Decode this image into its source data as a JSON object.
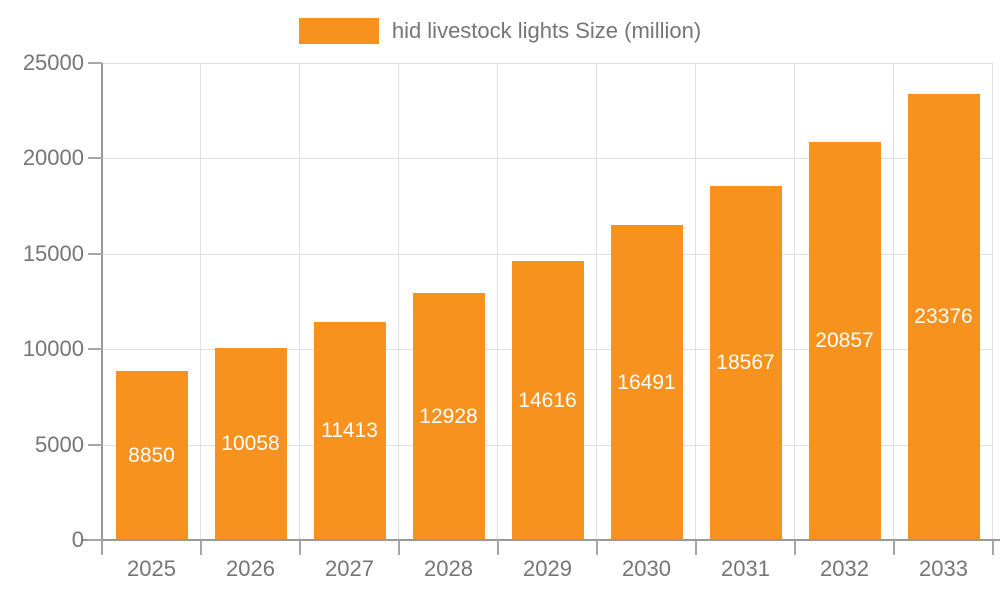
{
  "legend": {
    "label": "hid livestock lights Size (million)"
  },
  "chart_data": {
    "type": "bar",
    "title": "hid livestock lights Size (million)",
    "categories": [
      "2025",
      "2026",
      "2027",
      "2028",
      "2029",
      "2030",
      "2031",
      "2032",
      "2033"
    ],
    "values": [
      8850,
      10058,
      11413,
      12928,
      14616,
      16491,
      18567,
      20857,
      23376
    ],
    "xlabel": "",
    "ylabel": "",
    "ylim": [
      0,
      25000
    ],
    "yticks": [
      0,
      5000,
      10000,
      15000,
      20000,
      25000
    ],
    "grid": true,
    "legend_position": "top-center",
    "bar_color": "#F7921E",
    "grid_color": "#E0E0E0",
    "axis_color": "#999999",
    "tick_text_color": "#757575",
    "value_label_color": "#FFFFFF"
  }
}
